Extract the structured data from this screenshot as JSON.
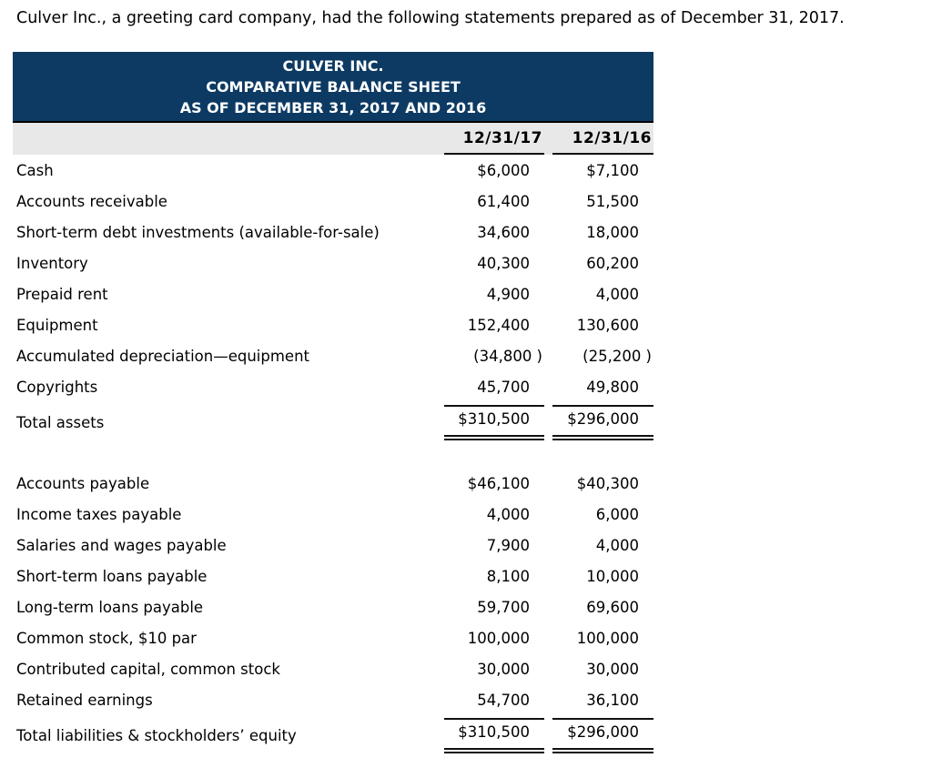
{
  "intro": "Culver Inc., a greeting card company, had the following statements prepared as of December 31, 2017.",
  "colors": {
    "header_bg": "#0d3a63",
    "subheader_bg": "#e8e8e8",
    "rule": "#111111",
    "text": "#000000"
  },
  "statement": {
    "title_lines": [
      "CULVER INC.",
      "COMPARATIVE BALANCE SHEET",
      "AS OF DECEMBER 31, 2017 AND 2016"
    ],
    "columns": [
      "12/31/17",
      "12/31/16"
    ],
    "sections": [
      {
        "name": "assets",
        "rows": [
          {
            "label": "Cash",
            "values": [
              "$6,000",
              "$7,100"
            ]
          },
          {
            "label": "Accounts receivable",
            "values": [
              "61,400",
              "51,500"
            ]
          },
          {
            "label": "Short-term debt investments (available-for-sale)",
            "values": [
              "34,600",
              "18,000"
            ]
          },
          {
            "label": "Inventory",
            "values": [
              "40,300",
              "60,200"
            ]
          },
          {
            "label": "Prepaid rent",
            "values": [
              "4,900",
              "4,000"
            ]
          },
          {
            "label": "Equipment",
            "values": [
              "152,400",
              "130,600"
            ]
          },
          {
            "label": "Accumulated depreciation—equipment",
            "values": [
              "(34,800 )",
              "(25,200 )"
            ]
          },
          {
            "label": "Copyrights",
            "values": [
              "45,700",
              "49,800"
            ]
          }
        ],
        "total": {
          "label": "Total assets",
          "values": [
            "$310,500",
            "$296,000"
          ]
        }
      },
      {
        "name": "liabilities-and-stockholders-equity",
        "rows": [
          {
            "label": "Accounts payable",
            "values": [
              "$46,100",
              "$40,300"
            ]
          },
          {
            "label": "Income taxes payable",
            "values": [
              "4,000",
              "6,000"
            ]
          },
          {
            "label": "Salaries and wages payable",
            "values": [
              "7,900",
              "4,000"
            ]
          },
          {
            "label": "Short-term loans payable",
            "values": [
              "8,100",
              "10,000"
            ]
          },
          {
            "label": "Long-term loans payable",
            "values": [
              "59,700",
              "69,600"
            ]
          },
          {
            "label": "Common stock, $10 par",
            "values": [
              "100,000",
              "100,000"
            ]
          },
          {
            "label": "Contributed capital, common stock",
            "values": [
              "30,000",
              "30,000"
            ]
          },
          {
            "label": "Retained earnings",
            "values": [
              "54,700",
              "36,100"
            ]
          }
        ],
        "total": {
          "label": "Total liabilities & stockholders’ equity",
          "values": [
            "$310,500",
            "$296,000"
          ]
        }
      }
    ]
  }
}
